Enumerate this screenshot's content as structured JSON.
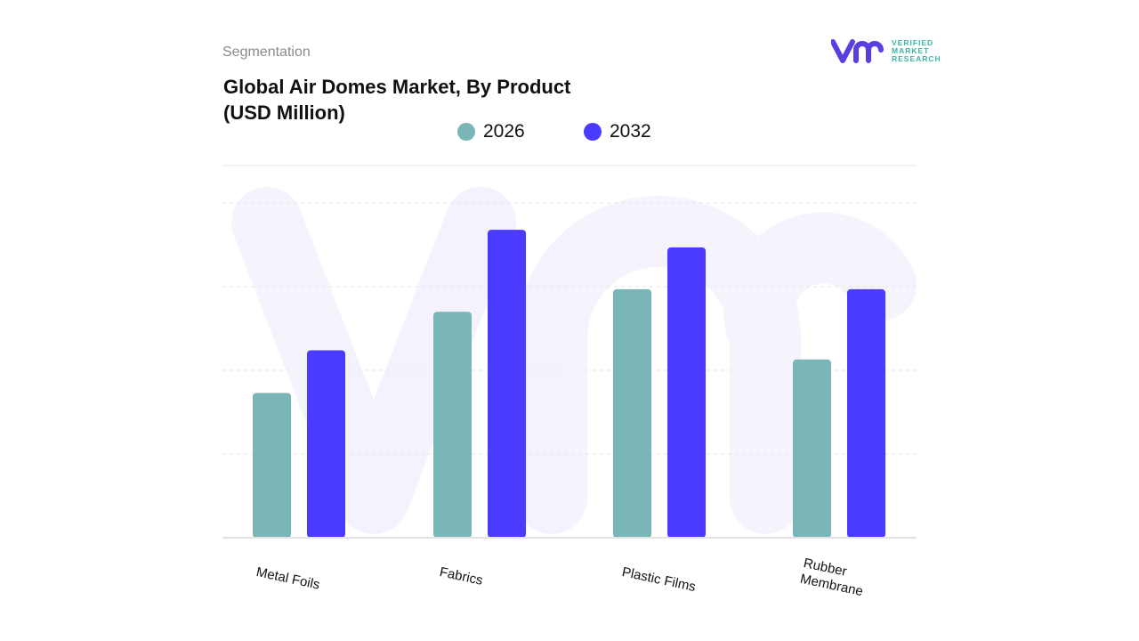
{
  "header": {
    "section": "Segmentation",
    "title_line1": "Global Air Domes Market, By Product",
    "title_line2": "(USD Million)"
  },
  "logo": {
    "line1": "VERIFIED",
    "line2": "MARKET",
    "line3": "RESEARCH",
    "icon": "vmr-logo-icon"
  },
  "colors": {
    "series_2026": "#7ab5b8",
    "series_2032": "#4b3aff",
    "logo_purple": "#5a3fe0",
    "logo_teal": "#3bb6a6"
  },
  "chart_data": {
    "type": "bar",
    "title": "Global Air Domes Market, By Product (USD Million)",
    "categories": [
      "Metal Foils",
      "Fabrics",
      "Plastic Films",
      "Rubber Membrane"
    ],
    "series": [
      {
        "name": "2026",
        "values": [
          1.73,
          2.7,
          2.97,
          2.13
        ]
      },
      {
        "name": "2032",
        "values": [
          2.24,
          3.68,
          3.47,
          2.97
        ]
      }
    ],
    "ylim": [
      0,
      4.45
    ],
    "y_gridlines": [
      1,
      2,
      3,
      4
    ],
    "y_tick_labels_shown": false,
    "grid": true,
    "legend_placement": "top-center",
    "xlabel": "",
    "ylabel": ""
  }
}
